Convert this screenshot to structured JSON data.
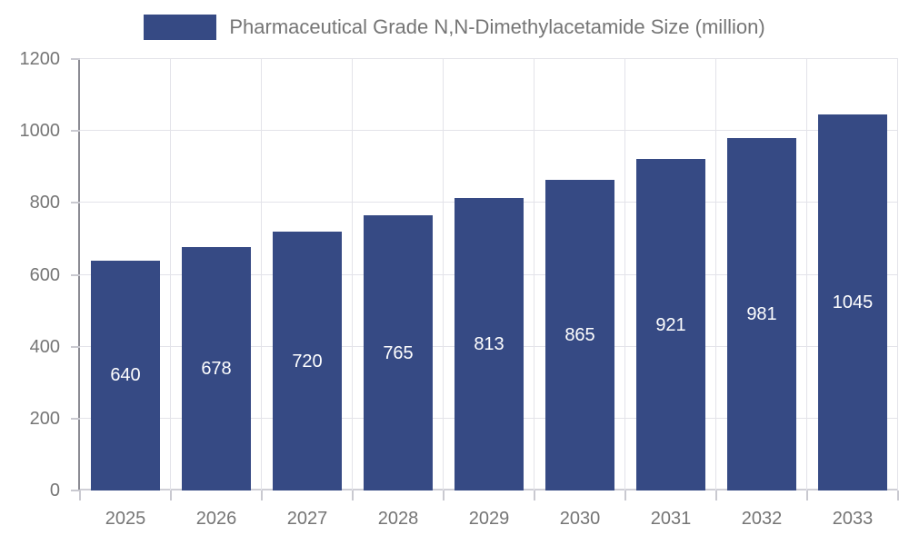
{
  "chart_data": {
    "type": "bar",
    "title": "Pharmaceutical Grade N,N-Dimethylacetamide Size (million)",
    "categories": [
      "2025",
      "2026",
      "2027",
      "2028",
      "2029",
      "2030",
      "2031",
      "2032",
      "2033"
    ],
    "values": [
      640,
      678,
      720,
      765,
      813,
      865,
      921,
      981,
      1045
    ],
    "xlabel": "",
    "ylabel": "",
    "ylim": [
      0,
      1200
    ],
    "ytick_step": 200,
    "yticks": [
      0,
      200,
      400,
      600,
      800,
      1000,
      1200
    ],
    "grid": "on",
    "legend_position": "top-center",
    "colors": {
      "bar": "#364a84",
      "bar_value_label": "#ffffff",
      "axis_text": "#757575",
      "legend_text": "#757575",
      "gridline": "#e3e3e9",
      "axis_line": "#8b8b93",
      "tick_mark": "#c9c9d0",
      "background": "#ffffff"
    }
  }
}
